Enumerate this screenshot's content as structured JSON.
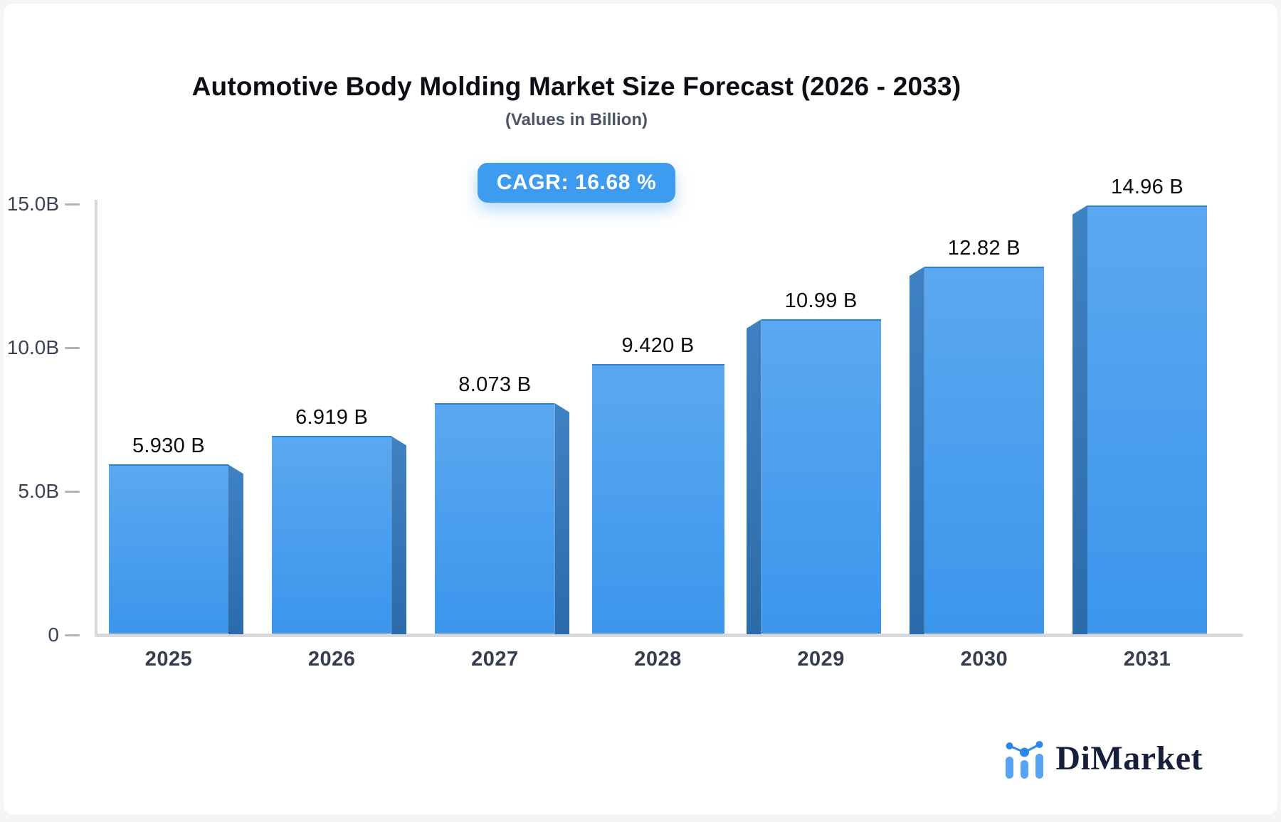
{
  "page": {
    "background": "#f4f5f7",
    "card_background": "#ffffff"
  },
  "header": {
    "title": "Automotive Body Molding Market Size Forecast (2026 - 2033)",
    "subtitle": "(Values in Billion)"
  },
  "cagr_badge": {
    "label": "CAGR: 16.68 %",
    "background": "#3D9BF0",
    "text_color": "#ffffff"
  },
  "chart_data": {
    "type": "bar",
    "title": "Automotive Body Molding Market Size Forecast (2026 - 2033)",
    "subtitle": "(Values in Billion)",
    "unit": "Billion",
    "cagr_percent": 16.68,
    "categories": [
      "2025",
      "2026",
      "2027",
      "2028",
      "2029",
      "2030",
      "2031"
    ],
    "values": [
      5.93,
      6.919,
      8.073,
      9.42,
      10.99,
      12.82,
      14.96
    ],
    "value_labels": [
      "5.930 B",
      "6.919 B",
      "8.073 B",
      "9.420 B",
      "10.99 B",
      "12.82 B",
      "14.96 B"
    ],
    "xlabel": "",
    "ylabel": "",
    "ylim": [
      0,
      15
    ],
    "yticks": [
      {
        "value": 0,
        "label": "0"
      },
      {
        "value": 5,
        "label": "5.0B"
      },
      {
        "value": 10,
        "label": "10.0B"
      },
      {
        "value": 15,
        "label": "15.0B"
      }
    ],
    "grid": false,
    "legend": false,
    "style": {
      "bar_gradient_top": "#5BA8EF",
      "bar_gradient_bottom": "#3B96EC",
      "bar_top_edge": "#2E82D3",
      "bar_side_top": "#3F82C3",
      "bar_side_bottom": "#2C6BA9",
      "axis_color": "#D7D9DD",
      "tick_dash_color": "#AFB4BB",
      "tick_label_color": "#3A4354",
      "x_label_color": "#333D4E",
      "value_label_color": "#0B0B0C"
    }
  },
  "footer": {
    "brand": "DiMarket",
    "logo_icon": "bar-chart-logo-icon",
    "brand_color": "#16203A",
    "icon_bar_color": "#56A4F3",
    "icon_dot_color": "#2F86EA"
  }
}
